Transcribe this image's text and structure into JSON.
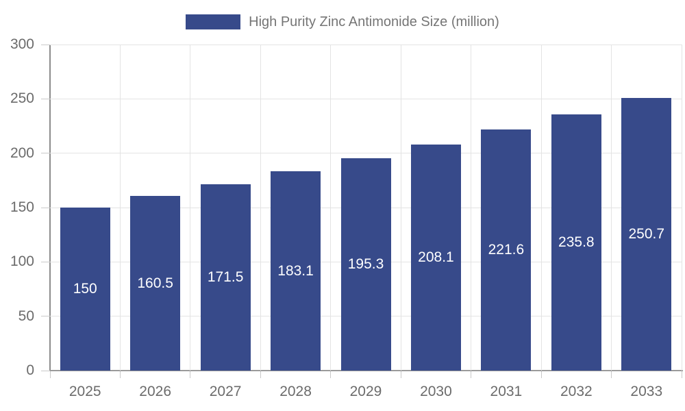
{
  "legend": {
    "label": "High Purity Zinc Antimonide Size (million)"
  },
  "chart_data": {
    "type": "bar",
    "title": "High Purity Zinc Antimonide Size (million)",
    "categories": [
      "2025",
      "2026",
      "2027",
      "2028",
      "2029",
      "2030",
      "2031",
      "2032",
      "2033"
    ],
    "values": [
      150,
      160.5,
      171.5,
      183.1,
      195.3,
      208.1,
      221.6,
      235.8,
      250.7
    ],
    "value_labels": [
      "150",
      "160.5",
      "171.5",
      "183.1",
      "195.3",
      "208.1",
      "221.6",
      "235.8",
      "250.7"
    ],
    "xlabel": "",
    "ylabel": "",
    "ylim": [
      0,
      300
    ],
    "yticks": [
      0,
      50,
      100,
      150,
      200,
      250,
      300
    ],
    "grid": true,
    "legend_position": "top",
    "colors": {
      "bar_fill": "#374a8a",
      "bar_value_text": "#ffffff",
      "axis_line": "#8c8c8c",
      "gridline": "#e3e3e3",
      "tick_label": "#6b6b6b",
      "legend_text": "#757575"
    }
  }
}
